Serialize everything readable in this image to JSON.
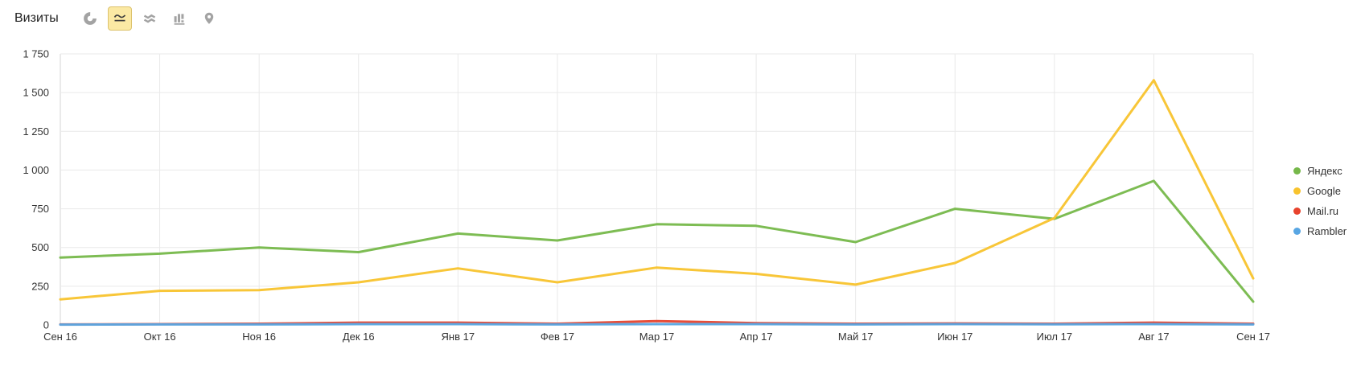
{
  "header": {
    "title": "Визиты"
  },
  "toolbar": {
    "icon_color": "#a3a3a3",
    "selected_icon_color": "#3d3d3d",
    "selected_bg": "#fbe9a4",
    "selected_border": "#dcc26c",
    "icons": [
      {
        "name": "donut-chart-icon",
        "selected": false
      },
      {
        "name": "line-chart-icon",
        "selected": true
      },
      {
        "name": "stacked-area-icon",
        "selected": false
      },
      {
        "name": "column-chart-icon",
        "selected": false
      },
      {
        "name": "map-pin-icon",
        "selected": false
      }
    ]
  },
  "chart_data": {
    "type": "line",
    "title": "Визиты",
    "categories": [
      "Сен 16",
      "Окт 16",
      "Ноя 16",
      "Дек 16",
      "Янв 17",
      "Фев 17",
      "Мар 17",
      "Апр 17",
      "Май 17",
      "Июн 17",
      "Июл 17",
      "Авг 17",
      "Сен 17"
    ],
    "series": [
      {
        "name": "Яндекс",
        "color": "#76b84a",
        "values": [
          435,
          460,
          500,
          470,
          590,
          545,
          650,
          640,
          535,
          750,
          685,
          930,
          150
        ]
      },
      {
        "name": "Google",
        "color": "#f8c32d",
        "values": [
          165,
          220,
          225,
          275,
          365,
          275,
          370,
          330,
          260,
          400,
          690,
          1580,
          300
        ]
      },
      {
        "name": "Mail.ru",
        "color": "#e8432d",
        "values": [
          3,
          5,
          8,
          15,
          15,
          8,
          25,
          12,
          8,
          10,
          8,
          15,
          8
        ]
      },
      {
        "name": "Rambler",
        "color": "#58a6e3",
        "values": [
          2,
          3,
          3,
          5,
          5,
          3,
          5,
          5,
          3,
          5,
          4,
          5,
          3
        ]
      }
    ],
    "ylim": [
      0,
      1750
    ],
    "ytick_values": [
      0,
      250,
      500,
      750,
      1000,
      1250,
      1500,
      1750
    ],
    "ytick_labels": [
      "0",
      "250",
      "500",
      "750",
      "1 000",
      "1 250",
      "1 500",
      "1 750"
    ],
    "xlabel": "",
    "ylabel": "",
    "grid": true,
    "legend_position": "right"
  },
  "colors": {
    "grid": "#e9e9e9",
    "axis": "#d6d6d6",
    "axis_text": "#333333"
  }
}
